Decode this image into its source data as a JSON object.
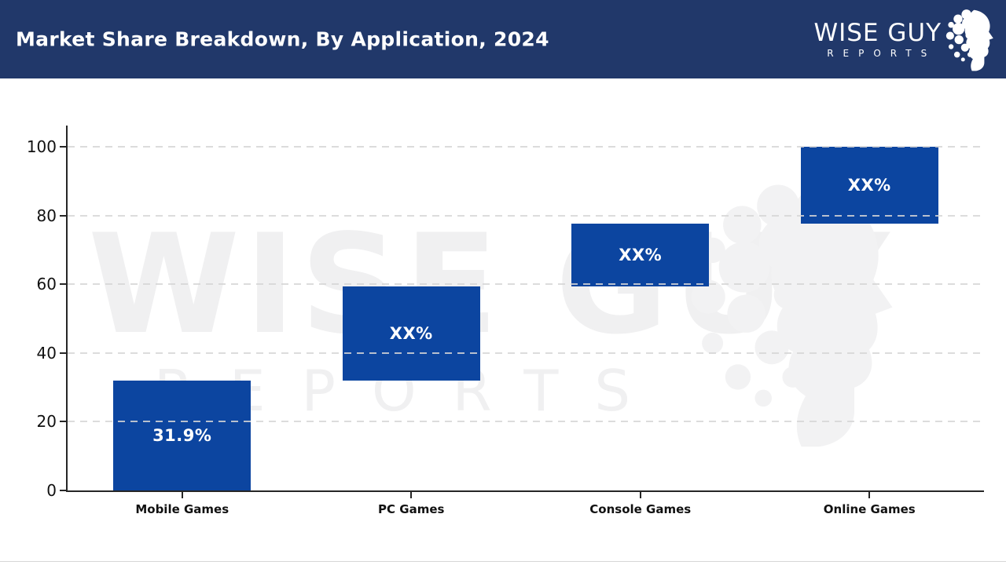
{
  "header": {
    "title": "Market Share Breakdown, By Application, 2024",
    "bg_color": "#21386a",
    "logo": {
      "wordmark": "WISE GUY",
      "subtitle": "REPORTS"
    }
  },
  "watermark": {
    "line1": "WISE GUY",
    "line2": "REPORTS"
  },
  "chart_data": {
    "type": "bar",
    "subtype": "waterfall",
    "title": "Market Share Breakdown, By Application, 2024",
    "categories": [
      "Mobile Games",
      "PC Games",
      "Console Games",
      "Online Games"
    ],
    "bars": [
      {
        "category": "Mobile Games",
        "start": 0,
        "end": 31.9,
        "label": "31.9%"
      },
      {
        "category": "PC Games",
        "start": 31.9,
        "end": 59.4,
        "label": "XX%"
      },
      {
        "category": "Console Games",
        "start": 59.4,
        "end": 77.6,
        "label": "XX%"
      },
      {
        "category": "Online Games",
        "start": 77.6,
        "end": 100,
        "label": "XX%"
      }
    ],
    "ylim": [
      0,
      100
    ],
    "yticks": [
      0,
      20,
      40,
      60,
      80,
      100
    ],
    "xlabel": "",
    "ylabel": "",
    "grid": {
      "axis": "y",
      "style": "dashed"
    },
    "legend": "none",
    "colors": {
      "bar": "#0c45a0",
      "bar_label": "#ffffff",
      "axis": "#262626",
      "gridline": "#d6d6d6",
      "watermark": "#f0f0f1"
    }
  }
}
